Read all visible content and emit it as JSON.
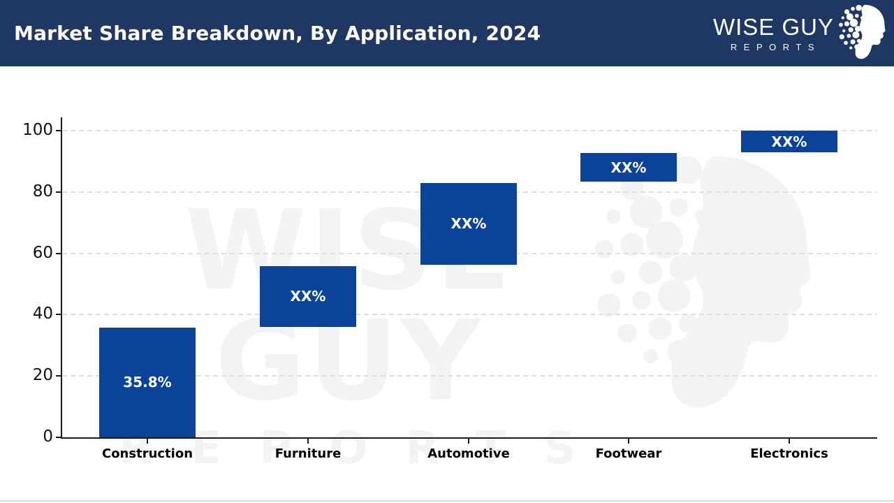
{
  "header": {
    "title": "Market Share Breakdown, By Application, 2024",
    "logo": {
      "line1": "WISE GUY",
      "line2": "REPORTS"
    }
  },
  "watermark": {
    "line1": "WISE GUY",
    "line2": "REPORTS"
  },
  "chart_data": {
    "type": "bar",
    "subtype": "waterfall",
    "title": "Market Share Breakdown, By Application, 2024",
    "xlabel": "",
    "ylabel": "",
    "categories": [
      "Construction",
      "Furniture",
      "Automotive",
      "Footwear",
      "Electronics"
    ],
    "segments": [
      {
        "category": "Construction",
        "start": 0,
        "end": 35.8,
        "label": "35.8%"
      },
      {
        "category": "Furniture",
        "start": 36,
        "end": 55.8,
        "label": "XX%"
      },
      {
        "category": "Automotive",
        "start": 56.2,
        "end": 83,
        "label": "XX%"
      },
      {
        "category": "Footwear",
        "start": 83.4,
        "end": 92.6,
        "label": "XX%"
      },
      {
        "category": "Electronics",
        "start": 92.9,
        "end": 100,
        "label": "XX%"
      }
    ],
    "yticks": [
      0,
      20,
      40,
      60,
      80,
      100
    ],
    "ylim": [
      0,
      105
    ],
    "grid": "dashed-horizontal",
    "legend": "none"
  },
  "colors": {
    "header_bg": "#1f3763",
    "bar": "#0a4397",
    "bar_label": "#ffffff",
    "axis": "#1a1a1a",
    "grid": "#dedede",
    "tick_label": "#111111",
    "watermark": "#f2f3f5",
    "footer_line": "#d9d9d9"
  }
}
